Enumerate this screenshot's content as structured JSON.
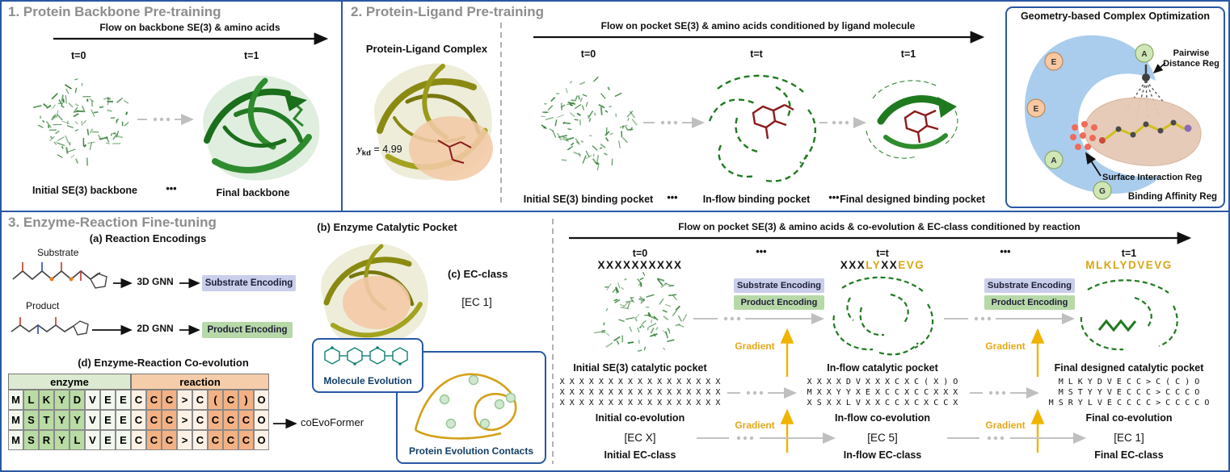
{
  "colors": {
    "accent_blue": "#2a57a5",
    "gold": "#d9a514",
    "green": "#1f7a1f",
    "olive": "#8a8a12",
    "dark_red": "#8b1a1a",
    "substrate_box": "#c9cfeb",
    "product_box": "#b7d9a8",
    "enzyme_highlight": "#b9dba4",
    "reaction_highlight": "#f4b183"
  },
  "panel1": {
    "title": "1. Protein Backbone Pre-training",
    "flow_label": "Flow on backbone SE(3) & amino acids",
    "t0": "t=0",
    "t1": "t=1",
    "initial_label": "Initial SE(3) backbone",
    "dots": "•••",
    "final_label": "Final backbone"
  },
  "panel2": {
    "title": "2. Protein-Ligand Pre-training",
    "complex_label": "Protein-Ligand Complex",
    "ykd": {
      "var": "y",
      "sub": "kd",
      "value": "= 4.99"
    },
    "flow_label": "Flow on pocket SE(3) & amino acids conditioned by ligand molecule",
    "t0": "t=0",
    "tt": "t=t",
    "t1": "t=1",
    "dots": "•••",
    "initial_label": "Initial SE(3) binding pocket",
    "inflow_label": "In-flow binding pocket",
    "final_label": "Final designed binding pocket",
    "geometry": {
      "title": "Geometry-based Complex Optimization",
      "pairwise_label": "Pairwise Distance Reg",
      "surface_label": "Surface Interaction Reg",
      "binding_label": "Binding Affinity Reg",
      "residues": [
        "E",
        "A",
        "E",
        "A",
        "G"
      ]
    }
  },
  "panel3": {
    "title": "3. Enzyme-Reaction Fine-tuning",
    "a_label": "(a) Reaction Encodings",
    "substrate_label": "Substrate",
    "product_label": "Product",
    "gnn_3d": "3D GNN",
    "gnn_2d": "2D GNN",
    "substrate_encoding": "Substrate Encoding",
    "product_encoding": "Product Encoding",
    "b_label": "(b) Enzyme Catalytic Pocket",
    "c_label": "(c) EC-class",
    "ec_class_value": "[EC 1]",
    "d_label": "(d) Enzyme-Reaction Co-evolution",
    "coevo_table": {
      "enzyme_header": "enzyme",
      "reaction_header": "reaction",
      "enzyme_col_count": 8,
      "green_cols": [
        1,
        2,
        3,
        4
      ],
      "peach_cols": [
        9,
        10,
        13,
        14,
        15
      ],
      "rows": [
        [
          "M",
          "L",
          "K",
          "Y",
          "D",
          "V",
          "E",
          "E",
          "C",
          "C",
          "C",
          ">",
          "C",
          "(",
          "C",
          ")",
          "O"
        ],
        [
          "M",
          "S",
          "T",
          "Y",
          "Y",
          "V",
          "E",
          "E",
          "C",
          "C",
          "C",
          ">",
          "C",
          "C",
          "C",
          "C",
          "O"
        ],
        [
          "M",
          "S",
          "R",
          "Y",
          "L",
          "V",
          "E",
          "E",
          "C",
          "C",
          "C",
          ">",
          "C",
          "C",
          "C",
          "C",
          "O"
        ]
      ]
    },
    "coevoformer_label": "coEvoFormer",
    "molecule_evolution_label": "Molecule Evolution",
    "protein_contacts_label": "Protein Evolution Contacts",
    "flow_label": "Flow on pocket SE(3) & amino acids & co-evolution & EC-class conditioned by reaction",
    "t0": "t=0",
    "tt": "t=t",
    "t1": "t=1",
    "dots": "•••",
    "seq_t0": "XXXXXXXXXX",
    "seq_tt": [
      "XXX",
      "LY",
      "XX",
      "EVG"
    ],
    "seq_t1": "MLKLYDVEVG",
    "gradient_label": "Gradient",
    "initial_pocket_label": "Initial SE(3) catalytic pocket",
    "inflow_pocket_label": "In-flow catalytic pocket",
    "final_pocket_label": "Final designed catalytic pocket",
    "coevo_t0_lines": [
      "X X X X X X X X X X X X X X X X X",
      "X X X X X X X X X X X X X X X X X",
      "X X X X X X X X X X X X X X X X X"
    ],
    "coevo_tt_lines": [
      "X X X X D V X X X C X C ( X ) O",
      "M X X Y Y X E X C C X C C X X X",
      "X S X X L V X X C C X C X C C X"
    ],
    "coevo_t1_lines": [
      "M L K Y D V E   C C > C ( C ) O",
      "M S T Y Y V E   C C C > C C C O",
      "M S R Y L V E C C C C > C C C C O"
    ],
    "initial_coevo_label": "Initial co-evolution",
    "inflow_coevo_label": "In-flow co-evolution",
    "final_coevo_label": "Final co-evolution",
    "ec_initial": "[EC X]",
    "ec_inflow": "[EC 5]",
    "ec_final": "[EC 1]",
    "initial_ec_label": "Initial EC-class",
    "inflow_ec_label": "In-flow EC-class",
    "final_ec_label": "Final EC-class"
  }
}
